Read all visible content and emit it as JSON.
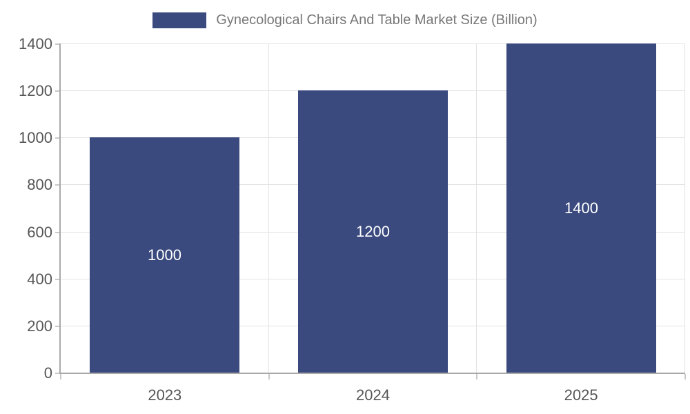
{
  "legend": {
    "label": "Gynecological Chairs And Table Market Size (Billion)"
  },
  "chart_data": {
    "type": "bar",
    "title": "Gynecological Chairs And Table Market Size (Billion)",
    "series_name": "Gynecological Chairs And Table Market Size (Billion)",
    "categories": [
      "2023",
      "2024",
      "2025"
    ],
    "values": [
      1000,
      1200,
      1400
    ],
    "bar_value_labels": [
      "1000",
      "1200",
      "1400"
    ],
    "xlabel": "",
    "ylabel": "",
    "ylim": [
      0,
      1400
    ],
    "ytick_step": 200,
    "yticks": [
      0,
      200,
      400,
      600,
      800,
      1000,
      1200,
      1400
    ],
    "grid": true,
    "legend_position": "top-center"
  },
  "colors": {
    "bar": "#3A4A7E",
    "bar_label_text": "#FFFFFF",
    "legend_text": "#787878",
    "tick_label_text": "#565656",
    "axis_line": "#A9A9A9",
    "grid_line": "#E2E2E2",
    "tick_mark": "#C9C9C9",
    "background": "#FFFFFF"
  }
}
